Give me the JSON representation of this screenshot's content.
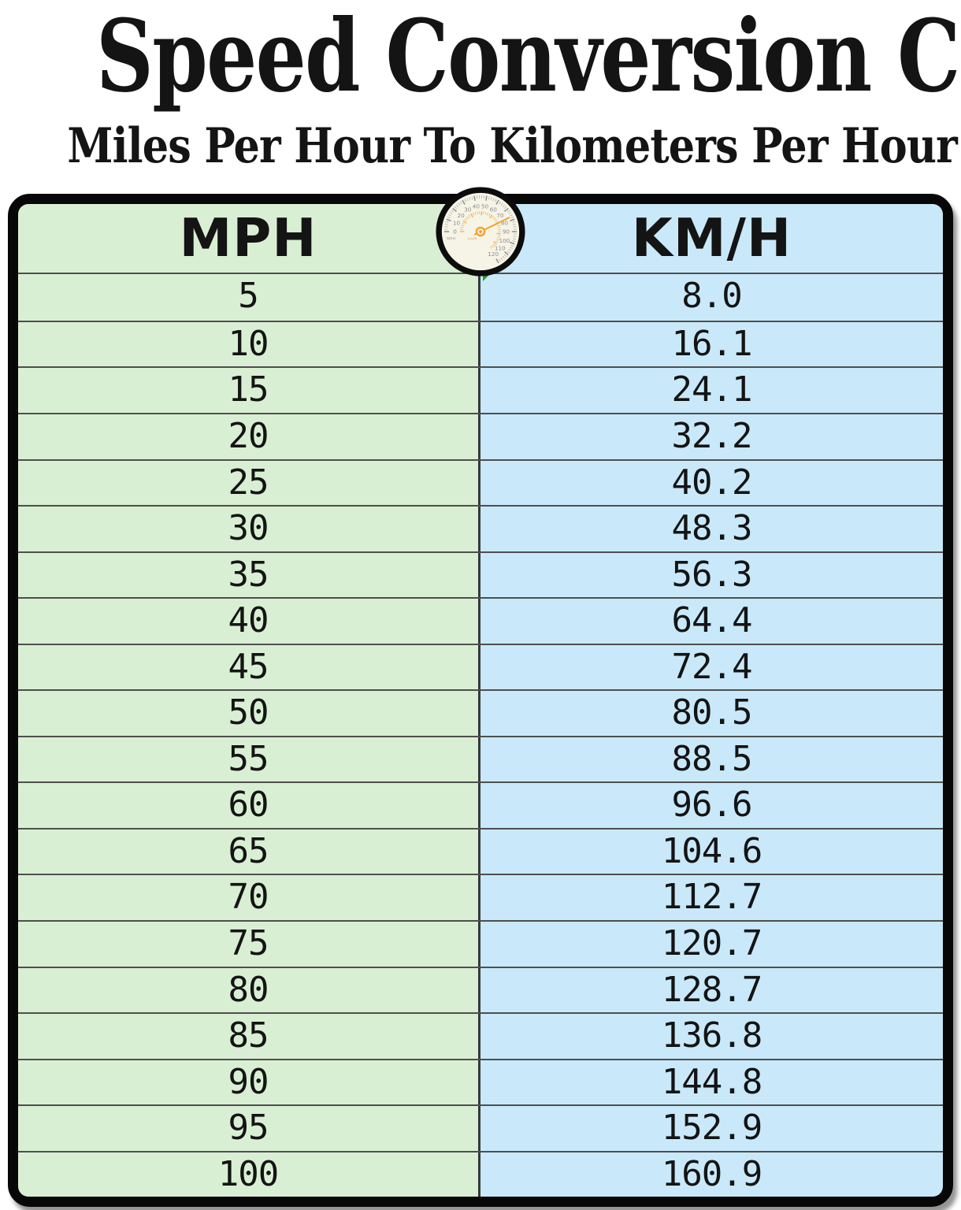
{
  "title": "Speed Conversion Chart",
  "subtitle": "Miles Per Hour To Kilometers Per Hour",
  "table": {
    "columns": [
      {
        "label": "MPH"
      },
      {
        "label": "KM/H"
      }
    ],
    "rows": [
      {
        "mph": "5",
        "kmh": "8.0"
      },
      {
        "mph": "10",
        "kmh": "16.1"
      },
      {
        "mph": "15",
        "kmh": "24.1"
      },
      {
        "mph": "20",
        "kmh": "32.2"
      },
      {
        "mph": "25",
        "kmh": "40.2"
      },
      {
        "mph": "30",
        "kmh": "48.3"
      },
      {
        "mph": "35",
        "kmh": "56.3"
      },
      {
        "mph": "40",
        "kmh": "64.4"
      },
      {
        "mph": "45",
        "kmh": "72.4"
      },
      {
        "mph": "50",
        "kmh": "80.5"
      },
      {
        "mph": "55",
        "kmh": "88.5"
      },
      {
        "mph": "60",
        "kmh": "96.6"
      },
      {
        "mph": "65",
        "kmh": "104.6"
      },
      {
        "mph": "70",
        "kmh": "112.7"
      },
      {
        "mph": "75",
        "kmh": "120.7"
      },
      {
        "mph": "80",
        "kmh": "128.7"
      },
      {
        "mph": "85",
        "kmh": "136.8"
      },
      {
        "mph": "90",
        "kmh": "144.8"
      },
      {
        "mph": "95",
        "kmh": "152.9"
      },
      {
        "mph": "100",
        "kmh": "160.9"
      }
    ]
  },
  "speedometer": {
    "dial_numbers": [
      "0",
      "10",
      "20",
      "30",
      "40",
      "50",
      "60",
      "70",
      "80",
      "90",
      "100",
      "110",
      "120"
    ],
    "mph_label": "MPH",
    "kmh_label": "km/h",
    "needle_value": 77
  },
  "colors": {
    "mph_column_bg": "#d9efd3",
    "kmh_column_bg": "#c9e9fa",
    "grid_line": "#4e4e4e",
    "divider": "#383838",
    "outer_border": "#070707",
    "gauge_accent": "#f5a02b",
    "gauge_face": "#f5f4e6",
    "flag_green": "#22a22e"
  },
  "chart_data": {
    "type": "table",
    "title": "Speed Conversion Chart",
    "subtitle": "Miles Per Hour To Kilometers Per Hour",
    "columns": [
      "MPH",
      "KM/H"
    ],
    "mph": [
      5,
      10,
      15,
      20,
      25,
      30,
      35,
      40,
      45,
      50,
      55,
      60,
      65,
      70,
      75,
      80,
      85,
      90,
      95,
      100
    ],
    "kmh": [
      8.0,
      16.1,
      24.1,
      32.2,
      40.2,
      48.3,
      56.3,
      64.4,
      72.4,
      80.5,
      88.5,
      96.6,
      104.6,
      112.7,
      120.7,
      128.7,
      136.8,
      144.8,
      152.9,
      160.9
    ]
  }
}
